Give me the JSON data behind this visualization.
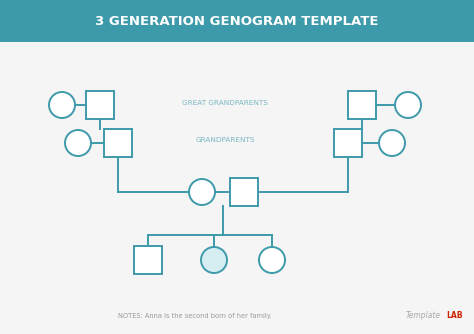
{
  "title": "3 GENERATION GENOGRAM TEMPLATE",
  "title_bg_color": "#3d9aaa",
  "title_text_color": "#ffffff",
  "shape_edge_color": "#3d9aaa",
  "shape_fill": "#ffffff",
  "highlight_fill": "#d6eef2",
  "line_color": "#3d9aaa",
  "notes_text": "NOTES: Anna is the second born of her family.",
  "label_color": "#7ab8c3",
  "label_great": "GREAT GRANDPARENTS",
  "label_grand": "GRANDPARENTS",
  "background_color": "#f5f5f5",
  "circle_r": 13,
  "square_s": 28,
  "lw": 1.4
}
